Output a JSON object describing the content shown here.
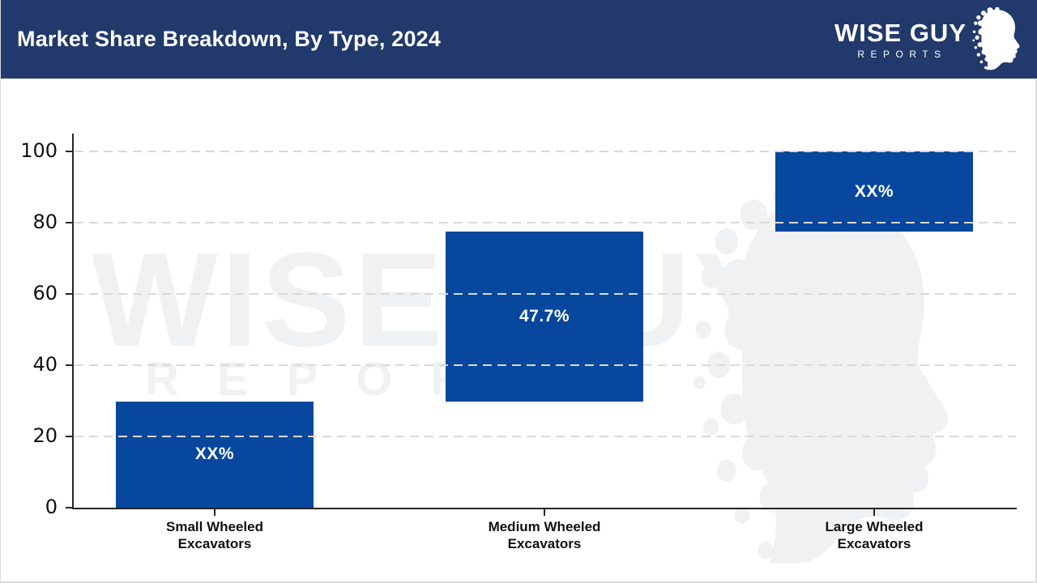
{
  "colors": {
    "header_bg": "#21396B",
    "bar_fill": "#07479D",
    "grid": "#D9D9D9",
    "axis": "#262626",
    "watermark": "#F0F1F2"
  },
  "header": {
    "title": "Market Share Breakdown, By Type, 2024",
    "logo": {
      "name": "WISE GUY",
      "subtext": "REPORTS"
    }
  },
  "watermark": {
    "line1": "WISE GUY",
    "line2": "REPORTS"
  },
  "chart_data": {
    "type": "bar",
    "subtype": "stacked-waterfall-percentage",
    "title": "Market Share Breakdown, By Type, 2024",
    "xlabel": "",
    "ylabel": "",
    "ylim": [
      0,
      100
    ],
    "yticks": [
      0,
      20,
      40,
      60,
      80,
      100
    ],
    "grid": "dashed-horizontal",
    "legend": "none",
    "categories": [
      "Small Wheeled Excavators",
      "Medium Wheeled Excavators",
      "Large Wheeled Excavators"
    ],
    "bars": [
      {
        "category_lines": [
          "Small Wheeled",
          "Excavators"
        ],
        "value_label": "XX%",
        "start": 0,
        "end": 29.8,
        "height_pct_est": 29.8
      },
      {
        "category_lines": [
          "Medium Wheeled",
          "Excavators"
        ],
        "value_label": "47.7%",
        "start": 29.8,
        "end": 77.5,
        "height_pct_est": 47.7
      },
      {
        "category_lines": [
          "Large Wheeled",
          "Excavators"
        ],
        "value_label": "XX%",
        "start": 77.5,
        "end": 100,
        "height_pct_est": 22.5
      }
    ]
  }
}
